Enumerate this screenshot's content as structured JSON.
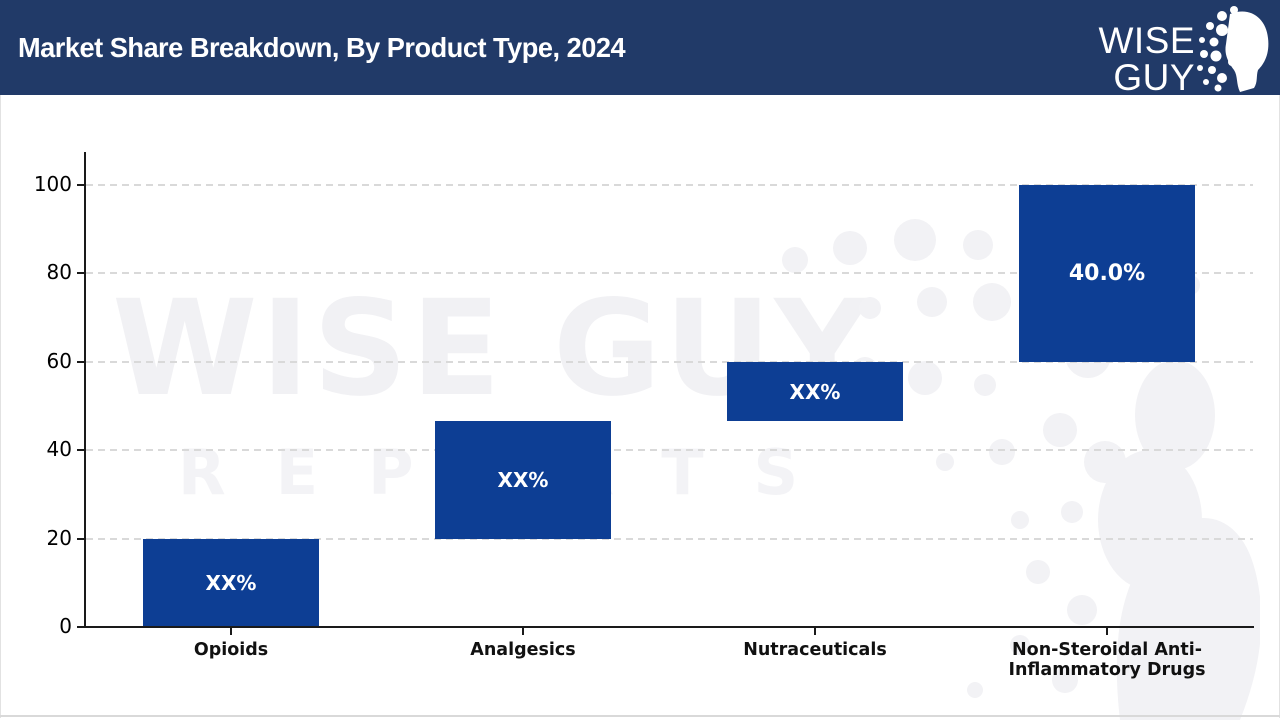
{
  "header": {
    "title": "Market Share Breakdown, By Product Type, 2024",
    "bg_color": "#213a68",
    "logo": {
      "line1": "WISE GUY",
      "line2": "REPORTS"
    }
  },
  "watermark": {
    "line1": "WISE GUY",
    "line2": "REPORTS"
  },
  "chart_data": {
    "type": "bar",
    "subtype": "waterfall",
    "title": "Market Share Breakdown, By Product Type, 2024",
    "categories": [
      "Opioids",
      "Analgesics",
      "Nutraceuticals",
      "Non-Steroidal Anti-Inflammatory Drugs"
    ],
    "segments": [
      {
        "start": 0,
        "end": 20,
        "label": "XX%"
      },
      {
        "start": 20,
        "end": 46.5,
        "label": "XX%"
      },
      {
        "start": 46.5,
        "end": 60,
        "label": "XX%"
      },
      {
        "start": 60,
        "end": 100,
        "label": "40.0%"
      }
    ],
    "values": [
      20,
      26.5,
      13.5,
      40
    ],
    "value_labels": [
      "XX%",
      "XX%",
      "XX%",
      "40.0%"
    ],
    "xlabel": "",
    "ylabel": "",
    "ylim": [
      0,
      100
    ],
    "yticks": [
      0,
      20,
      40,
      60,
      80,
      100
    ],
    "grid": "horizontal-dashed",
    "legend": "none",
    "bar_color": "#0d3e94",
    "label_color": "#ffffff"
  }
}
